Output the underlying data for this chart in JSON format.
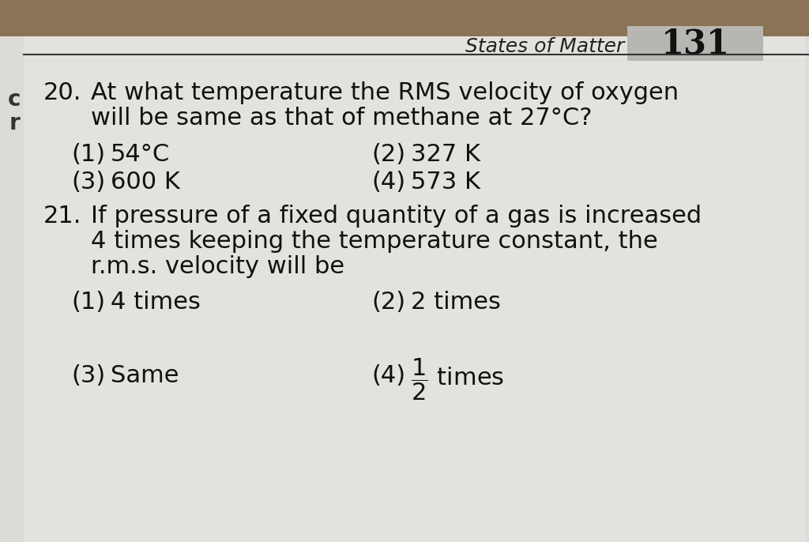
{
  "bg_color": "#c8c4c0",
  "page_bg": "#e8e6e2",
  "header_text": "States of Matter",
  "header_number": "131",
  "header_number_bg": "#888880",
  "header_number_color": "#111111",
  "header_color": "#222222",
  "line_color": "#333333",
  "q20_number": "20.",
  "q20_text_line1": "At what temperature the RMS velocity of oxygen",
  "q20_text_line2": "will be same as that of methane at 27°C?",
  "q20_opts": [
    [
      "(1)",
      "54°C"
    ],
    [
      "(2)",
      "327 K"
    ],
    [
      "(3)",
      "600 K"
    ],
    [
      "(4)",
      "573 K"
    ]
  ],
  "q21_number": "21.",
  "q21_text_line1": "If pressure of a fixed quantity of a gas is increased",
  "q21_text_line2": "4 times keeping the temperature constant, the",
  "q21_text_line3": "r.m.s. velocity will be",
  "q21_opts": [
    [
      "(1)",
      "4 times"
    ],
    [
      "(2)",
      "2 times"
    ],
    [
      "(3)",
      "Same"
    ],
    [
      "(4)",
      ""
    ]
  ],
  "text_color": "#111111",
  "font_size_body": 22,
  "font_size_header": 18,
  "font_size_number_box": 30,
  "left_tab_color": "#666660",
  "left_tab_letter1": "c",
  "left_tab_letter2": "r"
}
